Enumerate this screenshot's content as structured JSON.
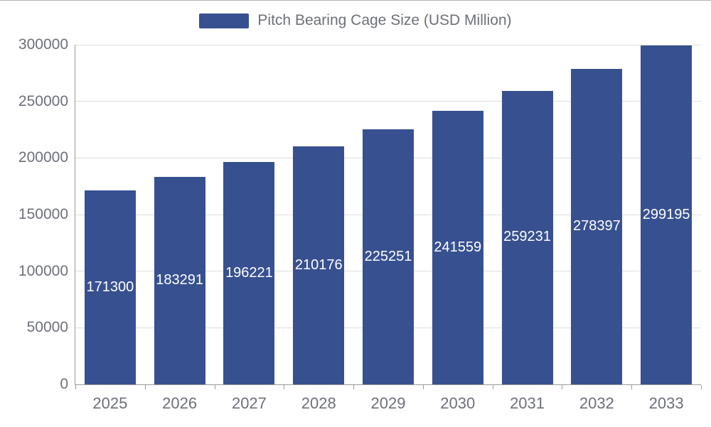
{
  "chart_data": {
    "type": "bar",
    "title": "Pitch Bearing Cage Size (USD Million)",
    "categories": [
      "2025",
      "2026",
      "2027",
      "2028",
      "2029",
      "2030",
      "2031",
      "2032",
      "2033"
    ],
    "values": [
      171300,
      183291,
      196221,
      210176,
      225251,
      241559,
      259231,
      278397,
      299195
    ],
    "value_labels": [
      "171300",
      "183291",
      "196221",
      "210176",
      "225251",
      "241559",
      "259231",
      "278397",
      "299195"
    ],
    "xlabel": "",
    "ylabel": "",
    "ylim": [
      0,
      300000
    ],
    "y_ticks": [
      0,
      50000,
      100000,
      150000,
      200000,
      250000,
      300000
    ],
    "grid": true,
    "legend_position": "top",
    "bar_color": "#37508f",
    "value_label_color": "#ffffff",
    "axis_text_color": "#6e7079"
  },
  "legend": {
    "label": "Pitch Bearing Cage Size (USD Million)"
  }
}
